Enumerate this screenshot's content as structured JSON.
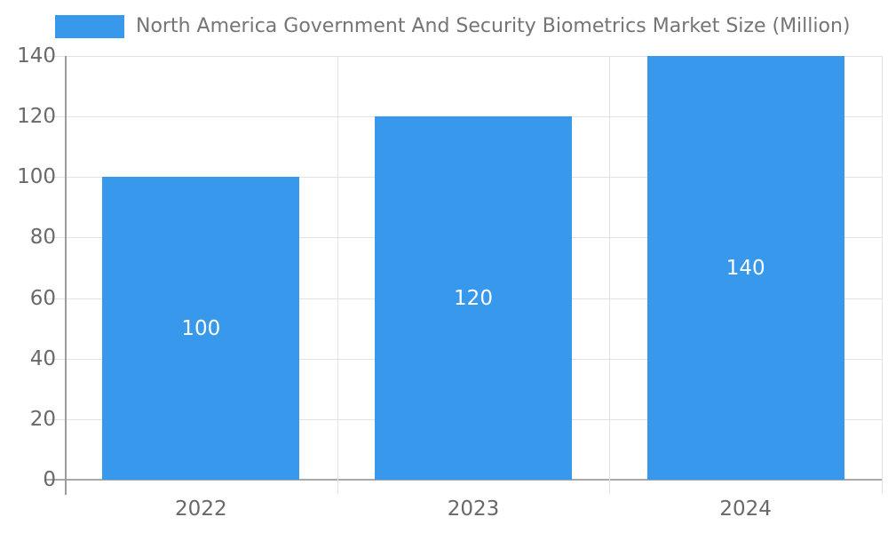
{
  "chart_data": {
    "type": "bar",
    "title": "North America Government And Security Biometrics Market Size (Million)",
    "categories": [
      "2022",
      "2023",
      "2024"
    ],
    "values": [
      100,
      120,
      140
    ],
    "series": [
      {
        "name": "North America Government And Security Biometrics Market Size (Million)",
        "values": [
          100,
          120,
          140
        ]
      }
    ],
    "xlabel": "",
    "ylabel": "",
    "ylim": [
      0,
      140
    ],
    "ytick_step": 20,
    "ytick_labels": [
      "0",
      "20",
      "40",
      "60",
      "80",
      "100",
      "120",
      "140"
    ],
    "grid": true,
    "legend_position": "top-left",
    "bar_color": "#3899ec",
    "bar_label_color": "#ffffff",
    "grid_color": "#e2e2e2",
    "baseline_color": "#a9a9a9",
    "axis_line_color": "#9b9b9b",
    "tick_label_color": "#696969",
    "legend_text_color": "#757575"
  }
}
